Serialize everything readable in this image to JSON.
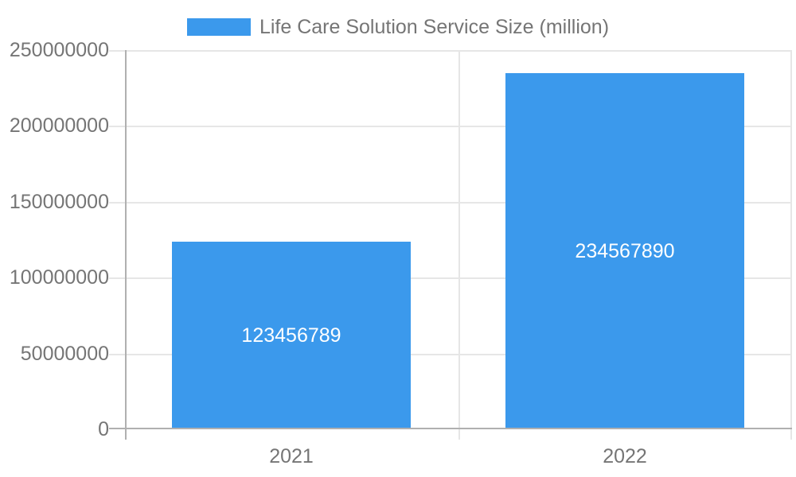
{
  "legend": {
    "label": "Life Care Solution Service Size (million)"
  },
  "chart_data": {
    "type": "bar",
    "title": "Life Care Solution Service Size (million)",
    "categories": [
      "2021",
      "2022"
    ],
    "series": [
      {
        "name": "Life Care Solution Service Size (million)",
        "values": [
          123456789,
          234567890
        ]
      }
    ],
    "value_labels": [
      "123456789",
      "234567890"
    ],
    "yticks": [
      "250000000",
      "200000000",
      "150000000",
      "100000000",
      "50000000",
      "0"
    ],
    "ylim": [
      0,
      250000000
    ],
    "xlabel": "",
    "ylabel": "",
    "grid": "horizontal-only",
    "legend_position": "top-center",
    "colors": {
      "bar": "#3B99EC",
      "grid": "#E6E6E6",
      "axis": "#B0B0B0",
      "tick_text": "#757575",
      "value_text": "#FFFFFF",
      "background": "#FFFFFF"
    }
  }
}
